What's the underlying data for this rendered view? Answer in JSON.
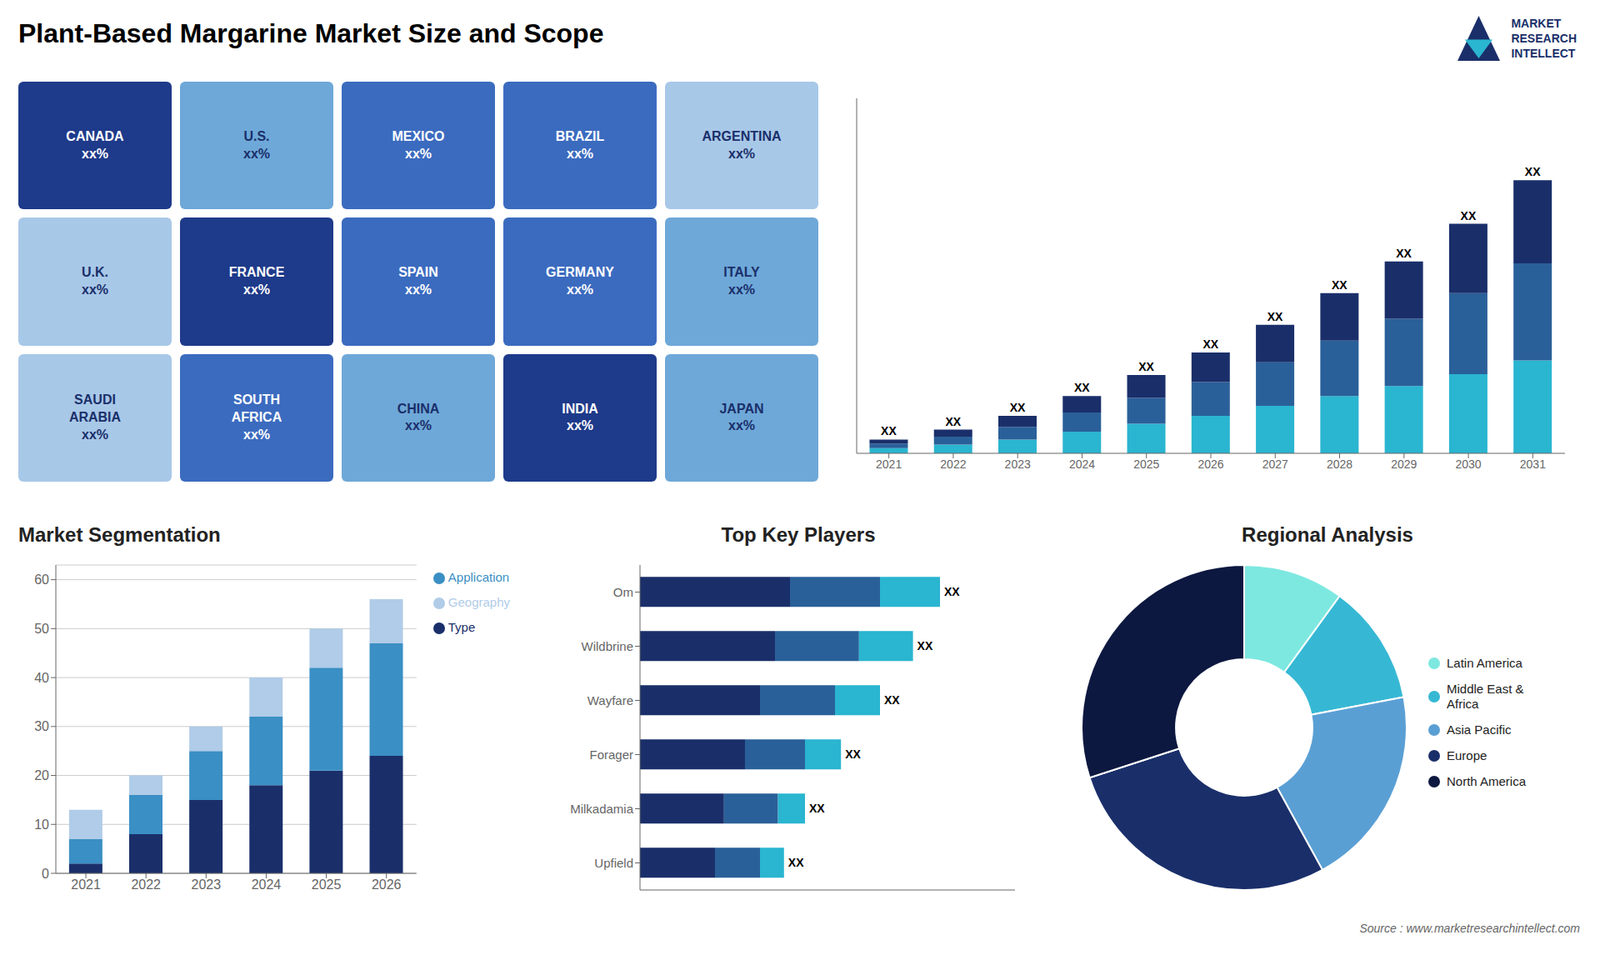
{
  "title": "Plant-Based Margarine Market Size and Scope",
  "annotations": [
    "Source : www.marketresearchintellect.com",
    "MARKET",
    "RESEARCH",
    "INTELLECT"
  ],
  "chart_data": [
    {
      "type": "map",
      "annotations": [
        "CANADA\nxx%",
        "U.S.\nxx%",
        "MEXICO\nxx%",
        "BRAZIL\nxx%",
        "ARGENTINA\nxx%",
        "U.K.\nxx%",
        "FRANCE\nxx%",
        "SPAIN\nxx%",
        "GERMANY\nxx%",
        "ITALY\nxx%",
        "SAUDI\nARABIA\nxx%",
        "SOUTH\nAFRICA\nxx%",
        "CHINA\nxx%",
        "INDIA\nxx%",
        "JAPAN\nxx%"
      ],
      "colors": [
        "#1e3a8a",
        "#6ea8d8",
        "#3b6bbf",
        "#3b6bbf",
        "#a8c8e8",
        "#a8c8e8",
        "#1e3a8a",
        "#3b6bbf",
        "#3b6bbf",
        "#6ea8d8",
        "#a8c8e8",
        "#3b6bbf",
        "#6ea8d8",
        "#1e3a8a",
        "#6ea8d8"
      ]
    },
    {
      "type": "bar",
      "stacked": true,
      "categories": [
        "2021",
        "2022",
        "2023",
        "2024",
        "2025",
        "2026",
        "2027",
        "2028",
        "2029",
        "2030",
        "2031"
      ],
      "series": [
        {
          "color": "#2ab5d0",
          "values": [
            1.3,
            2.2,
            3.5,
            5.5,
            7.5,
            9.5,
            12.0,
            14.5,
            17.0,
            20.0,
            23.5
          ]
        },
        {
          "color": "#2a6099",
          "values": [
            1.2,
            2.0,
            3.2,
            4.8,
            6.5,
            8.5,
            11.0,
            14.0,
            17.0,
            20.5,
            24.5
          ]
        },
        {
          "color": "#1a2f6a",
          "values": [
            1.0,
            1.8,
            2.8,
            4.2,
            5.8,
            7.5,
            9.5,
            12.0,
            14.5,
            17.5,
            21.0
          ]
        }
      ],
      "annotations": [
        "XX",
        "XX",
        "XX",
        "XX",
        "XX",
        "XX",
        "XX",
        "XX",
        "XX",
        "XX",
        "XX"
      ],
      "ylim": [
        0,
        89.7
      ],
      "tick_labels": "x",
      "grid": false
    },
    {
      "type": "bar",
      "stacked": true,
      "title": "Market Segmentation",
      "categories": [
        "2021",
        "2022",
        "2023",
        "2024",
        "2025",
        "2026"
      ],
      "series": [
        {
          "name": "Type",
          "color": "#1a2f6a",
          "values": [
            2,
            8,
            15,
            18,
            21,
            24
          ]
        },
        {
          "name": "Application",
          "color": "#3a8fc4",
          "values": [
            5,
            8,
            10,
            14,
            21,
            23
          ]
        },
        {
          "name": "Geography",
          "color": "#b0cce8",
          "values": [
            6,
            4,
            5,
            8,
            8,
            9
          ]
        }
      ],
      "ylim": [
        0,
        63
      ],
      "yticks": [
        0,
        10,
        20,
        30,
        40,
        50,
        60
      ],
      "grid": true,
      "legend": "right"
    },
    {
      "type": "bar",
      "stacked": true,
      "orientation": "horizontal",
      "title": "Top Key Players",
      "categories": [
        "Om",
        "Wildbrine",
        "Wayfare",
        "Forager",
        "Milkadamia",
        "Upfield"
      ],
      "series": [
        {
          "color": "#1a2f6a",
          "values": [
            5.0,
            4.5,
            4.0,
            3.5,
            2.8,
            2.5
          ]
        },
        {
          "color": "#2a6099",
          "values": [
            3.0,
            2.8,
            2.5,
            2.0,
            1.8,
            1.5
          ]
        },
        {
          "color": "#2ab5d0",
          "values": [
            2.0,
            1.8,
            1.5,
            1.2,
            0.9,
            0.8
          ]
        }
      ],
      "annotations": [
        "XX",
        "XX",
        "XX",
        "XX",
        "XX",
        "XX"
      ],
      "xlim": [
        0,
        12.5
      ],
      "tick_labels": "y",
      "grid": false
    },
    {
      "type": "pie",
      "title": "Regional Analysis",
      "categories": [
        "Latin America",
        "Middle East &\nAfrica",
        "Asia Pacific",
        "Europe",
        "North America"
      ],
      "values": [
        10,
        12,
        20,
        28,
        30
      ],
      "colors": [
        "#7de8e0",
        "#36b8d4",
        "#5a9fd4",
        "#1a2f6a",
        "#0d1840"
      ],
      "legend": "right"
    }
  ]
}
